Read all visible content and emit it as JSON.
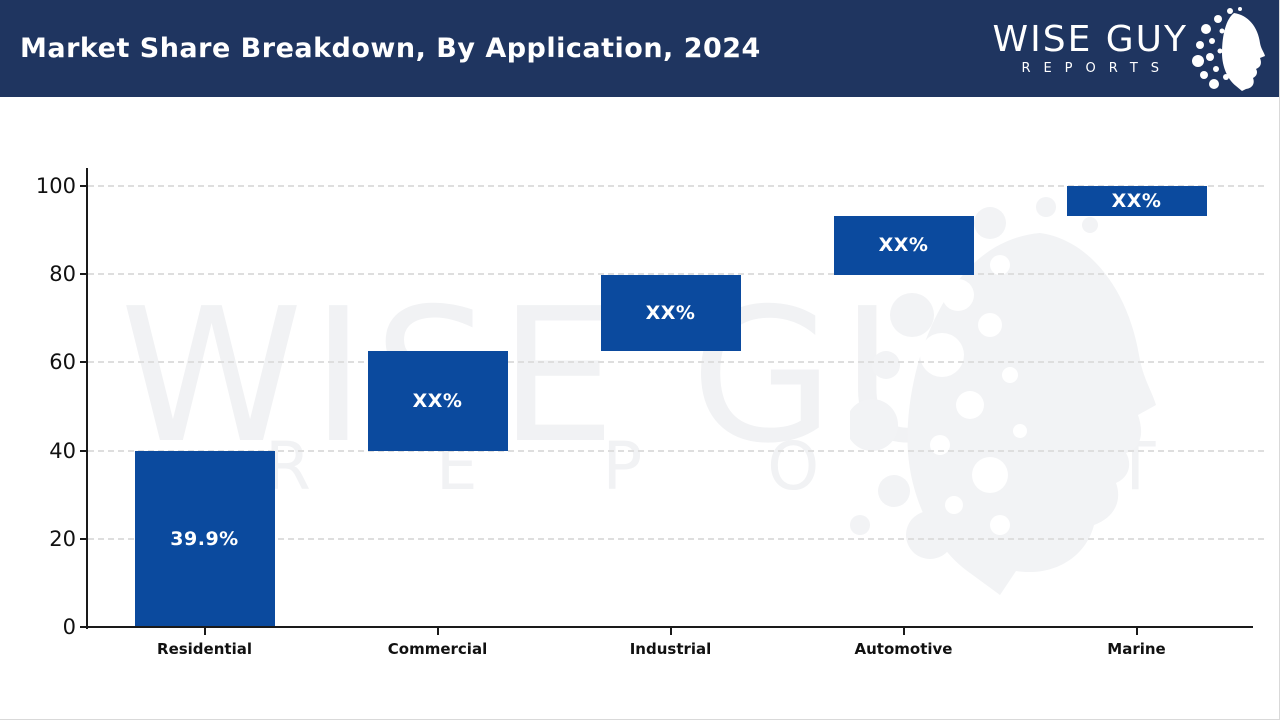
{
  "header": {
    "title": "Market Share Breakdown, By Application, 2024",
    "logo": {
      "line1": "WISE GUY",
      "line2": "REPORTS",
      "face_icon": "dotted-head-profile"
    }
  },
  "watermark": {
    "line1": "WISE GUY",
    "line2": "R E P O R T S",
    "face": "dotted-head-profile"
  },
  "colors": {
    "header_bg": "#1f3560",
    "bar": "#0b4a9e",
    "title_text": "#ffffff",
    "axis": "#1a1a1a",
    "grid": "#dedede",
    "watermark": "#f1f2f4"
  },
  "chart_data": {
    "type": "bar",
    "subtype": "waterfall",
    "title": "Market Share Breakdown, By Application, 2024",
    "xlabel": "",
    "ylabel": "",
    "categories": [
      "Residential",
      "Commercial",
      "Industrial",
      "Automotive",
      "Marine"
    ],
    "segments": [
      {
        "category": "Residential",
        "start": 0,
        "end": 39.9,
        "value": 39.9,
        "label": "39.9%"
      },
      {
        "category": "Commercial",
        "start": 39.9,
        "end": 62.5,
        "value": 22.6,
        "label": "XX%"
      },
      {
        "category": "Industrial",
        "start": 62.5,
        "end": 79.8,
        "value": 17.3,
        "label": "XX%"
      },
      {
        "category": "Automotive",
        "start": 79.8,
        "end": 93.3,
        "value": 13.5,
        "label": "XX%"
      },
      {
        "category": "Marine",
        "start": 93.3,
        "end": 100,
        "value": 6.7,
        "label": "XX%"
      }
    ],
    "ylim": [
      0,
      100
    ],
    "yticks": [
      0,
      20,
      40,
      60,
      80,
      100
    ],
    "grid": "horizontal-dashed",
    "legend": false,
    "bar_color": "#0b4a9e",
    "label_color": "#ffffff"
  }
}
